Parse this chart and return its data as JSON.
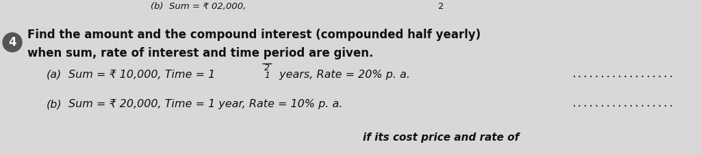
{
  "bg_color": "#d8d8d8",
  "top_partial_text": "(b)  Sum = ₹ 02,000,",
  "top_right_text": "2",
  "circle_color": "#555555",
  "circle_number": "4",
  "main_line1": "Find the amount and the compound interest (compounded half yearly)",
  "main_line2": "when sum, rate of interest and time period are given.",
  "part_a_label": "(a)",
  "part_a_text_before_frac": "Sum = ₹ 10,000, Time = 1",
  "part_a_frac_num": "1",
  "part_a_frac_den": "2",
  "part_a_text_after_frac": " years, Rate = 20% p. a.",
  "part_a_dots": "..................",
  "part_b_label": "(b)",
  "part_b_text": "Sum = ₹ 20,000, Time = 1 year, Rate = 10% p. a.",
  "part_b_dots": "..................",
  "bottom_partial": "if its cost price and rate of",
  "font_color": "#111111"
}
